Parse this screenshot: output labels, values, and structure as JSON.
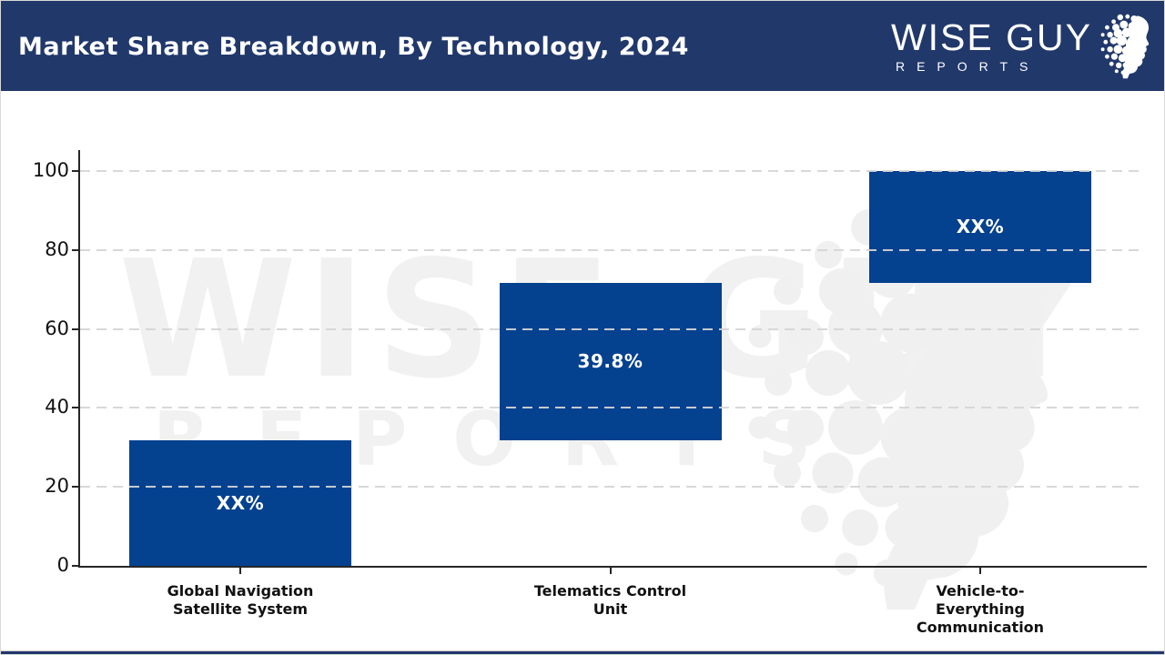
{
  "header": {
    "title": "Market Share Breakdown, By Technology, 2024",
    "logo": {
      "brand_line1": "WISE GUY",
      "brand_line2": "REPORTS"
    }
  },
  "watermark": {
    "line1": "WISE GUY",
    "line2": "REPORTS"
  },
  "chart_data": {
    "type": "bar",
    "subtype": "floating-waterfall-segments",
    "title": "Market Share Breakdown, By Technology, 2024",
    "xlabel": "",
    "ylabel": "",
    "ylim": [
      0,
      100
    ],
    "yticks": [
      0,
      20,
      40,
      60,
      80,
      100
    ],
    "grid": "horizontal-dashed",
    "legend": "none",
    "categories": [
      "Global Navigation\nSatellite System",
      "Telematics Control\nUnit",
      "Vehicle-to-\nEverything\nCommunication"
    ],
    "bars": [
      {
        "category": "Global Navigation\nSatellite System",
        "start": 0,
        "end": 31.9,
        "value_label": "XX%"
      },
      {
        "category": "Telematics Control\nUnit",
        "start": 31.9,
        "end": 71.7,
        "value_label": "39.8%"
      },
      {
        "category": "Vehicle-to-\nEverything\nCommunication",
        "start": 71.7,
        "end": 100,
        "value_label": "XX%"
      }
    ],
    "bar_color": "#04418f",
    "bar_label_color": "#ffffff"
  },
  "colors": {
    "header_bg": "#21386b",
    "footer_bg": "#21386b",
    "bar_blue": "#04418f",
    "gridline": "#d5d5d5",
    "axis": "#262626",
    "watermark": "#f1f1f1"
  }
}
